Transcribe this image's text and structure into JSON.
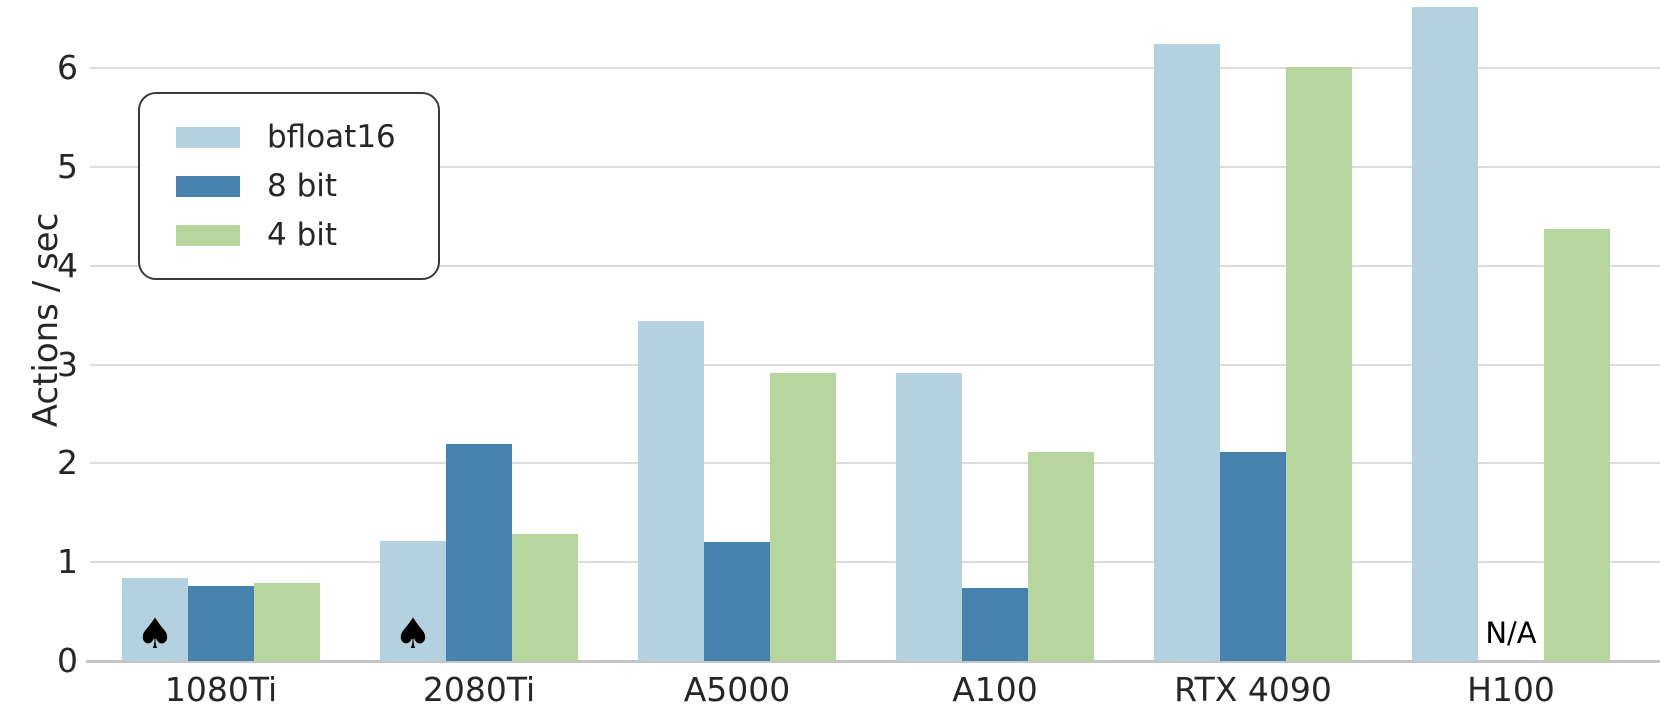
{
  "chart_data": {
    "type": "bar",
    "title": "",
    "xlabel": "",
    "ylabel": "Actions / sec",
    "categories": [
      "1080Ti",
      "2080Ti",
      "A5000",
      "A100",
      "RTX 4090",
      "H100"
    ],
    "series": [
      {
        "name": "bfloat16",
        "color": "#b4d1e0",
        "values": [
          0.84,
          1.21,
          3.44,
          2.92,
          6.25,
          6.62
        ]
      },
      {
        "name": "8 bit",
        "color": "#4781ae",
        "values": [
          0.76,
          2.2,
          1.2,
          0.74,
          2.12,
          null
        ]
      },
      {
        "name": "4 bit",
        "color": "#b7d69d",
        "values": [
          0.79,
          1.29,
          2.92,
          2.12,
          6.01,
          4.37
        ]
      }
    ],
    "yticks": [
      0,
      1,
      2,
      3,
      4,
      5,
      6
    ],
    "ylim": [
      0,
      6.69
    ],
    "grid": true,
    "legend_position": "upper-left",
    "annotations": [
      {
        "type": "glyph",
        "text": "♠",
        "series": "bfloat16",
        "category": "1080Ti",
        "meaning": "spade-marker"
      },
      {
        "type": "glyph",
        "text": "♠",
        "series": "bfloat16",
        "category": "2080Ti",
        "meaning": "spade-marker"
      },
      {
        "type": "text",
        "text": "N/A",
        "series": "8 bit",
        "category": "H100",
        "meaning": "missing-value"
      }
    ]
  },
  "colors": {
    "background": "#ffffff",
    "gridline": "#dcdcdc",
    "axis_line": "#c4c4c4",
    "text": "#262626",
    "legend_border": "#3a3a3a",
    "annotation": "#000000"
  }
}
